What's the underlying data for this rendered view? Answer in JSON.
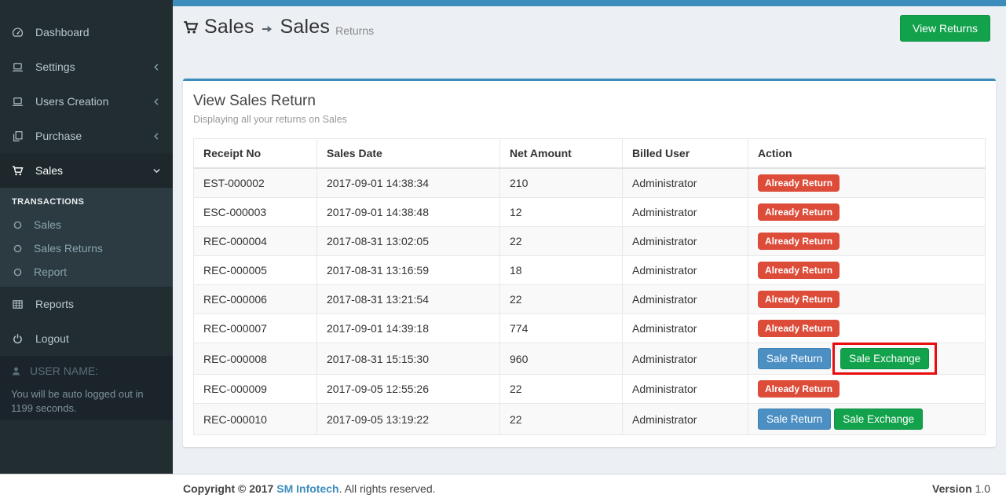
{
  "sidebar": {
    "items": [
      {
        "label": "Dashboard"
      },
      {
        "label": "Settings"
      },
      {
        "label": "Users Creation"
      },
      {
        "label": "Purchase"
      },
      {
        "label": "Sales"
      }
    ],
    "transactions_header": "TRANSACTIONS",
    "sub_items": [
      {
        "label": "Sales"
      },
      {
        "label": "Sales Returns"
      },
      {
        "label": "Report"
      }
    ],
    "bottom_items": [
      {
        "label": "Reports"
      },
      {
        "label": "Logout"
      }
    ],
    "user_label": "USER NAME:",
    "auto_logout_line1": "You will be auto logged out in",
    "auto_logout_line2": "1199 seconds."
  },
  "header": {
    "breadcrumb_section": "Sales",
    "breadcrumb_page": "Sales",
    "breadcrumb_sub": "Returns",
    "view_returns_label": "View Returns"
  },
  "panel": {
    "title": "View Sales Return",
    "subtitle": "Displaying all your returns on Sales"
  },
  "table": {
    "columns": [
      "Receipt No",
      "Sales Date",
      "Net Amount",
      "Billed User",
      "Action"
    ],
    "rows": [
      {
        "receipt": "EST-000002",
        "date": "2017-09-01 14:38:34",
        "amount": "210",
        "user": "Administrator",
        "actions": [
          {
            "label": "Already Return",
            "type": "danger"
          }
        ]
      },
      {
        "receipt": "ESC-000003",
        "date": "2017-09-01 14:38:48",
        "amount": "12",
        "user": "Administrator",
        "actions": [
          {
            "label": "Already Return",
            "type": "danger"
          }
        ]
      },
      {
        "receipt": "REC-000004",
        "date": "2017-08-31 13:02:05",
        "amount": "22",
        "user": "Administrator",
        "actions": [
          {
            "label": "Already Return",
            "type": "danger"
          }
        ]
      },
      {
        "receipt": "REC-000005",
        "date": "2017-08-31 13:16:59",
        "amount": "18",
        "user": "Administrator",
        "actions": [
          {
            "label": "Already Return",
            "type": "danger"
          }
        ]
      },
      {
        "receipt": "REC-000006",
        "date": "2017-08-31 13:21:54",
        "amount": "22",
        "user": "Administrator",
        "actions": [
          {
            "label": "Already Return",
            "type": "danger"
          }
        ]
      },
      {
        "receipt": "REC-000007",
        "date": "2017-09-01 14:39:18",
        "amount": "774",
        "user": "Administrator",
        "actions": [
          {
            "label": "Already Return",
            "type": "danger"
          }
        ]
      },
      {
        "receipt": "REC-000008",
        "date": "2017-08-31 15:15:30",
        "amount": "960",
        "user": "Administrator",
        "actions": [
          {
            "label": "Sale Return",
            "type": "primary"
          },
          {
            "label": "Sale Exchange",
            "type": "success",
            "highlighted": true
          }
        ]
      },
      {
        "receipt": "REC-000009",
        "date": "2017-09-05 12:55:26",
        "amount": "22",
        "user": "Administrator",
        "actions": [
          {
            "label": "Already Return",
            "type": "danger"
          }
        ]
      },
      {
        "receipt": "REC-000010",
        "date": "2017-09-05 13:19:22",
        "amount": "22",
        "user": "Administrator",
        "actions": [
          {
            "label": "Sale Return",
            "type": "primary"
          },
          {
            "label": "Sale Exchange",
            "type": "success"
          }
        ]
      }
    ]
  },
  "footer": {
    "copyright_bold": "Copyright © 2017",
    "company_link": "SM Infotech",
    "copyright_rest": ". All rights reserved.",
    "version_label": "Version",
    "version_value": "1.0"
  },
  "colors": {
    "accent_blue": "#3c8dbc",
    "sidebar_bg": "#222d32",
    "danger_button": "#dd4b39",
    "primary_button": "#4b8fc3",
    "success_button": "#12a24c",
    "highlight_red": "#e70d0d"
  }
}
